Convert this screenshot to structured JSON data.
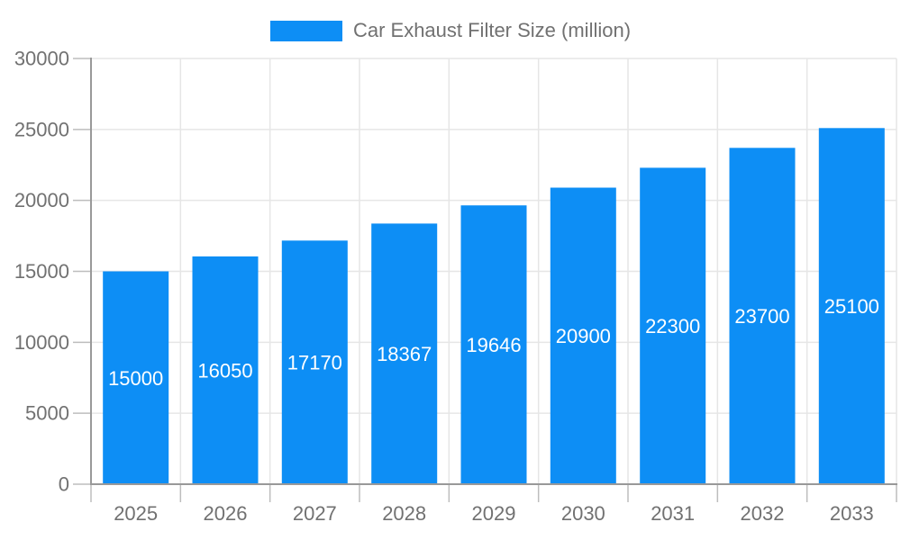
{
  "chart_data": {
    "type": "bar",
    "title": "Car Exhaust Filter Size (million)",
    "legend_entries": [
      "Car Exhaust Filter Size (million)"
    ],
    "legend_position": "top-center",
    "categories": [
      "2025",
      "2026",
      "2027",
      "2028",
      "2029",
      "2030",
      "2031",
      "2032",
      "2033"
    ],
    "series": [
      {
        "name": "Car Exhaust Filter Size (million)",
        "values": [
          15000,
          16050,
          17170,
          18367,
          19646,
          20900,
          22300,
          23700,
          25100
        ]
      }
    ],
    "xlabel": "",
    "ylabel": "",
    "ylim": [
      0,
      30000
    ],
    "yticks": [
      0,
      5000,
      10000,
      15000,
      20000,
      25000,
      30000
    ],
    "grid": "horizontal-and-vertical",
    "bar_label_position": "inside-center"
  },
  "colors": {
    "bar": "#0d8ef5",
    "bar_label": "#ffffff",
    "axis_line": "#999999",
    "gridline": "#e6e6e6",
    "tick": "#bdbdbd",
    "axis_label": "#717171",
    "legend_text": "#717171",
    "background": "#ffffff"
  }
}
